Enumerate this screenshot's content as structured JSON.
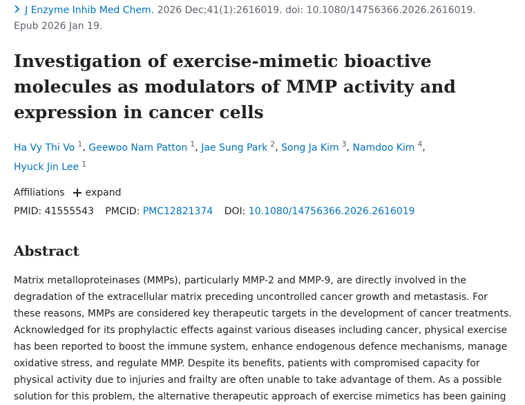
{
  "citation": {
    "chevron_icon": "chevron-right-icon",
    "journal": "J Enzyme Inhib Med Chem.",
    "details": " 2026 Dec;41(1):2616019. doi: 10.1080/14756366.2026.2616019.",
    "epub": "Epub 2026 Jan 19."
  },
  "title": "Investigation of exercise-mimetic bioactive molecules as modulators of MMP activity and expression in cancer cells",
  "authors": [
    {
      "name": "Ha Vy Thi Vo",
      "aff": "1"
    },
    {
      "name": "Geewoo Nam Patton",
      "aff": "1"
    },
    {
      "name": "Jae Sung Park",
      "aff": "2"
    },
    {
      "name": "Song Ja Kim",
      "aff": "3"
    },
    {
      "name": "Namdoo Kim",
      "aff": "4"
    },
    {
      "name": "Hyuck Jin Lee",
      "aff": "1"
    }
  ],
  "affiliations": {
    "label": "Affiliations",
    "expand_label": "expand",
    "expand_icon": "plus-icon"
  },
  "ids": {
    "pmid_label": "PMID:",
    "pmid": "41555543",
    "pmcid_label": "PMCID:",
    "pmcid": "PMC12821374",
    "doi_label": "DOI:",
    "doi": "10.1080/14756366.2026.2616019"
  },
  "abstract": {
    "heading": "Abstract",
    "text": "Matrix metalloproteinases (MMPs), particularly MMP-2 and MMP-9, are directly involved in the degradation of the extracellular matrix preceding uncontrolled cancer growth and metastasis. For these reasons, MMPs are considered key therapeutic targets in the development of cancer treatments. Acknowledged for its prophylactic effects against various diseases including cancer, physical exercise has been reported to boost the immune system, enhance endogenous defence mechanisms, manage oxidative stress, and regulate MMP. Despite its benefits, patients with compromised capacity for physical activity due to injuries and frailty are often unable to take advantage of them. As a possible solution for this problem, the alternative therapeutic approach of exercise mimetics has been gaining"
  },
  "colors": {
    "link": "#0071bc",
    "text": "#212121",
    "muted": "#5b616b"
  }
}
